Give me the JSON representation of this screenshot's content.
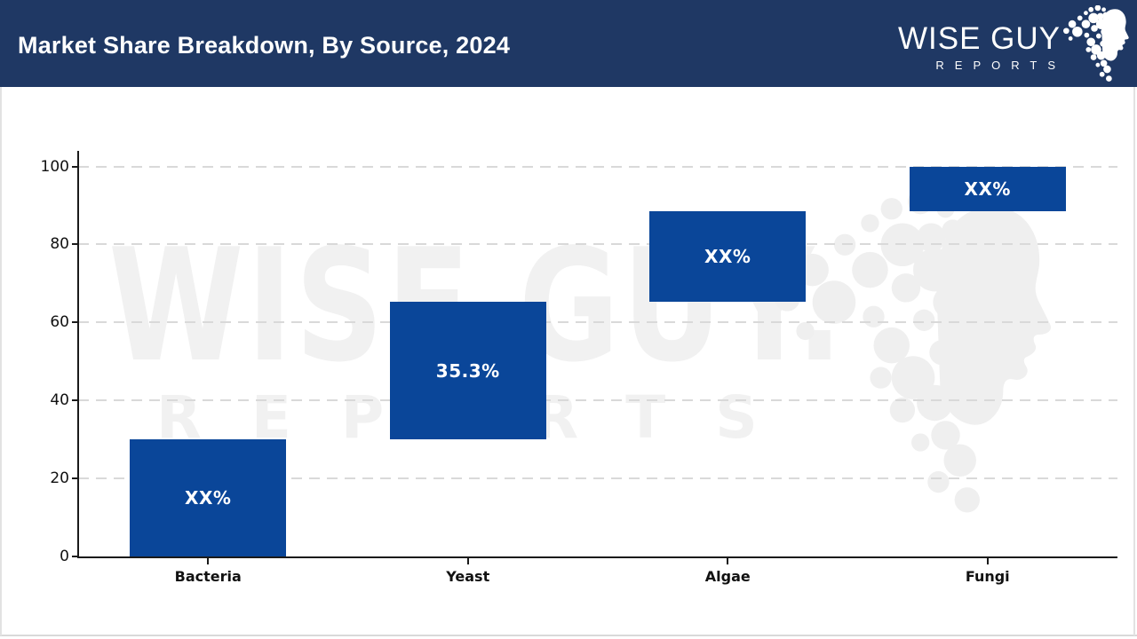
{
  "header": {
    "title": "Market Share Breakdown, By Source, 2024",
    "logo": {
      "name": "WISE GUY",
      "tagline": "REPORTS"
    }
  },
  "watermark": {
    "brand": "WISE GUY.",
    "tagline": "REPORTS"
  },
  "chart_data": {
    "type": "bar",
    "subtype": "waterfall",
    "title": "Market Share Breakdown, By Source, 2024",
    "categories": [
      "Bacteria",
      "Yeast",
      "Algae",
      "Fungi"
    ],
    "segments": [
      {
        "category": "Bacteria",
        "start": 0,
        "end": 30,
        "label": "XX%"
      },
      {
        "category": "Yeast",
        "start": 30,
        "end": 65.3,
        "label": "35.3%"
      },
      {
        "category": "Algae",
        "start": 65.3,
        "end": 88.6,
        "label": "XX%"
      },
      {
        "category": "Fungi",
        "start": 88.6,
        "end": 100,
        "label": "XX%"
      }
    ],
    "xlabel": "",
    "ylabel": "",
    "ylim": [
      0,
      104
    ],
    "yticks": [
      0,
      20,
      40,
      60,
      80,
      100
    ],
    "grid": "horizontal-dashed",
    "legend": "none",
    "colors": {
      "bar": "#0a4699",
      "bar_label": "#ffffff",
      "grid": "#d9d9d9",
      "axis": "#1a1a1a",
      "header_bg": "#1f3864",
      "watermark": "#f1f1f1"
    }
  }
}
